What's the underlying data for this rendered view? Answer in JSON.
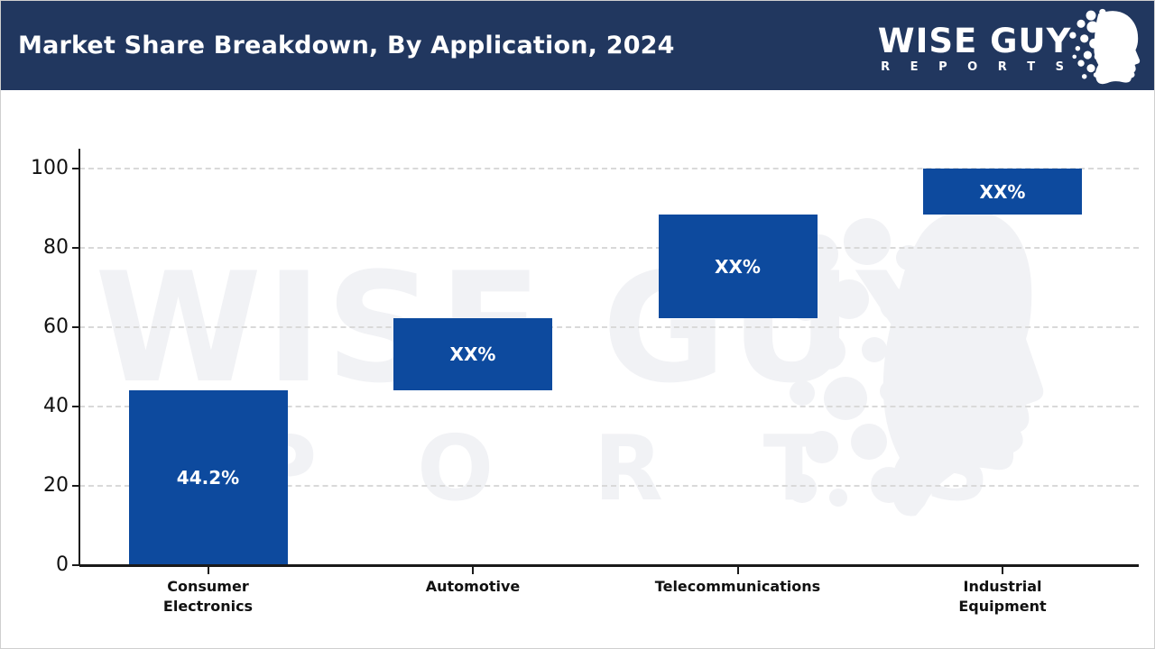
{
  "header": {
    "title": "Market Share Breakdown, By Application, 2024",
    "logo": {
      "brand_line1": "WISE GUY",
      "brand_line2": "R E P O R T S"
    }
  },
  "watermark": {
    "line1": "WISE GUY",
    "line2": "P O R T S"
  },
  "chart_data": {
    "type": "bar",
    "subtype": "waterfall",
    "title": "Market Share Breakdown, By Application, 2024",
    "xlabel": "",
    "ylabel": "",
    "ylim": [
      0,
      105
    ],
    "yticks": [
      0,
      20,
      40,
      60,
      80,
      100
    ],
    "grid": "horizontal dashed",
    "legend": "none",
    "categories": [
      "Consumer Electronics",
      "Automotive",
      "Telecommunications",
      "Industrial Equipment"
    ],
    "bars": [
      {
        "category": "Consumer Electronics",
        "category_lines": [
          "Consumer",
          "Electronics"
        ],
        "start": 0,
        "end": 44.2,
        "label": "44.2%"
      },
      {
        "category": "Automotive",
        "category_lines": [
          "Automotive"
        ],
        "start": 44.2,
        "end": 62.2,
        "label": "XX%"
      },
      {
        "category": "Telecommunications",
        "category_lines": [
          "Telecommunications"
        ],
        "start": 62.2,
        "end": 88.4,
        "label": "XX%"
      },
      {
        "category": "Industrial Equipment",
        "category_lines": [
          "Industrial",
          "Equipment"
        ],
        "start": 88.4,
        "end": 100,
        "label": "XX%"
      }
    ]
  },
  "colors": {
    "header_bg": "#21375f",
    "bar": "#0d4a9e",
    "grid": "#d9d9d9",
    "axis": "#1a1a1a",
    "value_label": "#ffffff",
    "watermark": "#f1f2f5"
  }
}
